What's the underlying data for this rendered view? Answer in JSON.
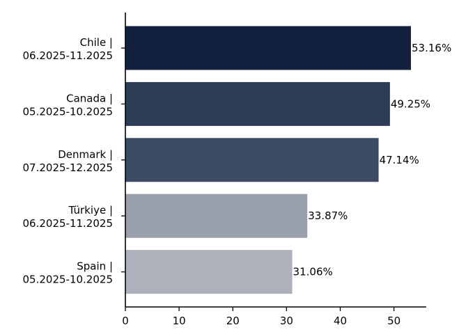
{
  "chart_data": {
    "type": "bar",
    "orientation": "horizontal",
    "title": "",
    "xlabel": "",
    "ylabel": "",
    "xlim": [
      0,
      56
    ],
    "xticks": [
      0,
      10,
      20,
      30,
      40,
      50
    ],
    "grid": false,
    "categories": [
      [
        "Chile |",
        "06.2025-11.2025"
      ],
      [
        "Canada |",
        "05.2025-10.2025"
      ],
      [
        "Denmark |",
        "07.2025-12.2025"
      ],
      [
        "Türkiye |",
        "06.2025-11.2025"
      ],
      [
        "Spain |",
        "05.2025-10.2025"
      ]
    ],
    "values": [
      53.16,
      49.25,
      47.14,
      33.87,
      31.06
    ],
    "value_labels": [
      "53.16%",
      "49.25%",
      "47.14%",
      "33.87%",
      "31.06%"
    ],
    "colors": [
      "#13213f",
      "#2e3c57",
      "#3d4a63",
      "#9aa0ab",
      "#adb1bb"
    ]
  }
}
